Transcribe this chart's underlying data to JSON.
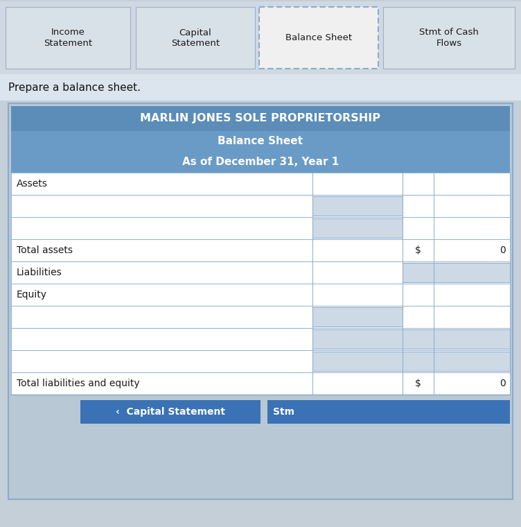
{
  "tab_labels": [
    "Income\nStatement",
    "Capital\nStatement",
    "Balance Sheet",
    "Stmt of Cash\nFlows"
  ],
  "active_tab": 2,
  "instruction_text": "Prepare a balance sheet.",
  "company_name": "MARLIN JONES SOLE PROPRIETORSHIP",
  "sheet_title": "Balance Sheet",
  "sheet_date": "As of December 31, Year 1",
  "table_rows": [
    {
      "label": "Assets",
      "type": "section_header",
      "col1": "",
      "col2": ""
    },
    {
      "label": "",
      "type": "input_row",
      "col1": "",
      "col2": ""
    },
    {
      "label": "",
      "type": "input_row",
      "col1": "",
      "col2": ""
    },
    {
      "label": "Total assets",
      "type": "total_row",
      "col1": "$",
      "col2": "0"
    },
    {
      "label": "Liabilities",
      "type": "section_header_input",
      "col1": "",
      "col2": ""
    },
    {
      "label": "Equity",
      "type": "section_header",
      "col1": "",
      "col2": ""
    },
    {
      "label": "",
      "type": "input_row",
      "col1": "",
      "col2": ""
    },
    {
      "label": "",
      "type": "input_row2",
      "col1": "",
      "col2": ""
    },
    {
      "label": "",
      "type": "input_row2",
      "col1": "",
      "col2": ""
    },
    {
      "label": "Total liabilities and equity",
      "type": "total_row",
      "col1": "$",
      "col2": "0"
    }
  ],
  "outer_bg": "#c5cfd8",
  "tab_area_bg": "#d0d9e2",
  "active_tab_bg": "#f0f0f0",
  "inactive_tab_bg": "#d8e0e8",
  "tab_border_color": "#9ab0c4",
  "active_tab_border": "#8aabcc",
  "instr_bg": "#dce5ee",
  "header_blue": "#5b8db8",
  "header_blue2": "#6a9bc6",
  "header_text_color": "#ffffff",
  "white": "#ffffff",
  "input_row_bg": "#cdd9e5",
  "input_cell_bg": "#b8cdd e",
  "row_border": "#8aabcc",
  "button_blue": "#3a72b5",
  "button_text": "#ffffff",
  "content_border": "#8aabcc",
  "content_bg": "#b8c8d5"
}
